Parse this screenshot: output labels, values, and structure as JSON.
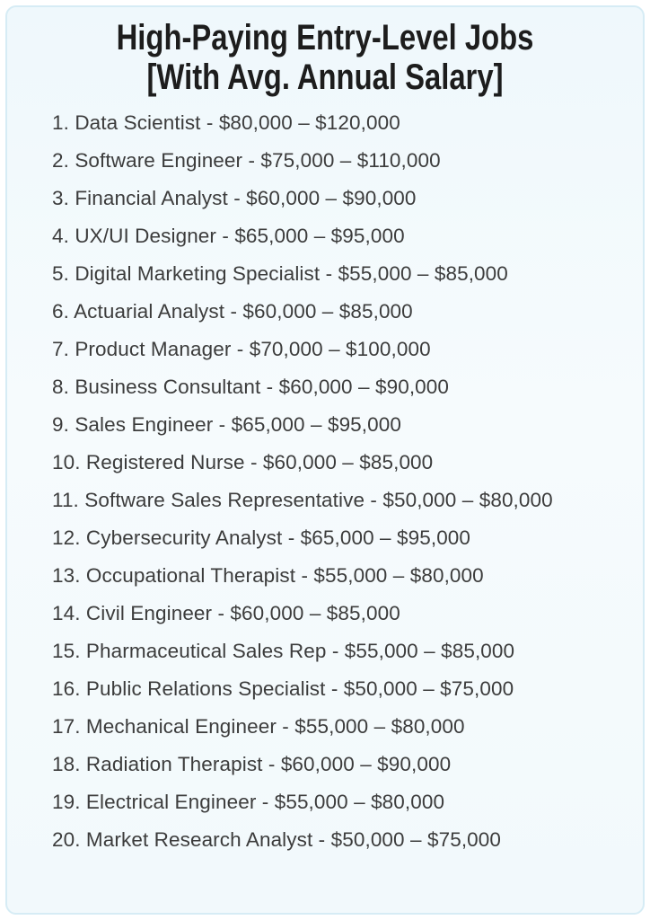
{
  "page": {
    "background_color": "#ffffff",
    "panel_background": "#f4fafd",
    "panel_border_color": "#d6ecf5",
    "title_color": "#1d1d1d",
    "list_text_color": "#3c3c3c"
  },
  "title": {
    "line1": "High-Paying Entry-Level Jobs",
    "line2": "[With Avg. Annual Salary]"
  },
  "jobs": [
    {
      "rank": 1,
      "job_title": "Data Scientist",
      "salary_min": "$80,000",
      "salary_max": "$120,000",
      "display": "1. Data Scientist - $80,000 – $120,000"
    },
    {
      "rank": 2,
      "job_title": "Software Engineer",
      "salary_min": "$75,000",
      "salary_max": "$110,000",
      "display": "2. Software Engineer - $75,000 – $110,000"
    },
    {
      "rank": 3,
      "job_title": "Financial Analyst",
      "salary_min": "$60,000",
      "salary_max": "$90,000",
      "display": "3. Financial Analyst - $60,000 – $90,000"
    },
    {
      "rank": 4,
      "job_title": "UX/UI Designer",
      "salary_min": "$65,000",
      "salary_max": "$95,000",
      "display": "4. UX/UI Designer - $65,000 – $95,000"
    },
    {
      "rank": 5,
      "job_title": "Digital Marketing Specialist",
      "salary_min": "$55,000",
      "salary_max": "$85,000",
      "display": "5. Digital Marketing Specialist - $55,000 – $85,000"
    },
    {
      "rank": 6,
      "job_title": "Actuarial Analyst",
      "salary_min": "$60,000",
      "salary_max": "$85,000",
      "display": "6. Actuarial Analyst - $60,000 – $85,000"
    },
    {
      "rank": 7,
      "job_title": "Product Manager",
      "salary_min": "$70,000",
      "salary_max": "$100,000",
      "display": "7. Product Manager - $70,000 – $100,000"
    },
    {
      "rank": 8,
      "job_title": "Business Consultant",
      "salary_min": "$60,000",
      "salary_max": "$90,000",
      "display": "8. Business Consultant - $60,000 – $90,000"
    },
    {
      "rank": 9,
      "job_title": "Sales Engineer",
      "salary_min": "$65,000",
      "salary_max": "$95,000",
      "display": "9. Sales Engineer - $65,000 – $95,000"
    },
    {
      "rank": 10,
      "job_title": "Registered Nurse",
      "salary_min": "$60,000",
      "salary_max": "$85,000",
      "display": "10. Registered Nurse - $60,000 – $85,000"
    },
    {
      "rank": 11,
      "job_title": "Software Sales Representative",
      "salary_min": "$50,000",
      "salary_max": "$80,000",
      "display": "11. Software Sales Representative - $50,000 – $80,000"
    },
    {
      "rank": 12,
      "job_title": "Cybersecurity Analyst",
      "salary_min": "$65,000",
      "salary_max": "$95,000",
      "display": "12. Cybersecurity Analyst - $65,000 – $95,000"
    },
    {
      "rank": 13,
      "job_title": "Occupational Therapist",
      "salary_min": "$55,000",
      "salary_max": "$80,000",
      "display": "13. Occupational Therapist - $55,000 – $80,000"
    },
    {
      "rank": 14,
      "job_title": "Civil Engineer",
      "salary_min": "$60,000",
      "salary_max": "$85,000",
      "display": "14. Civil Engineer - $60,000 – $85,000"
    },
    {
      "rank": 15,
      "job_title": "Pharmaceutical Sales Rep",
      "salary_min": "$55,000",
      "salary_max": "$85,000",
      "display": "15. Pharmaceutical Sales Rep - $55,000 – $85,000"
    },
    {
      "rank": 16,
      "job_title": "Public Relations Specialist",
      "salary_min": "$50,000",
      "salary_max": "$75,000",
      "display": "16. Public Relations Specialist - $50,000 – $75,000"
    },
    {
      "rank": 17,
      "job_title": "Mechanical Engineer",
      "salary_min": "$55,000",
      "salary_max": "$80,000",
      "display": "17. Mechanical Engineer - $55,000 – $80,000"
    },
    {
      "rank": 18,
      "job_title": "Radiation Therapist",
      "salary_min": "$60,000",
      "salary_max": "$90,000",
      "display": "18. Radiation Therapist - $60,000 – $90,000"
    },
    {
      "rank": 19,
      "job_title": "Electrical Engineer",
      "salary_min": "$55,000",
      "salary_max": "$80,000",
      "display": "19. Electrical Engineer - $55,000 – $80,000"
    },
    {
      "rank": 20,
      "job_title": "Market Research Analyst",
      "salary_min": "$50,000",
      "salary_max": "$75,000",
      "display": "20. Market Research Analyst - $50,000 – $75,000"
    }
  ]
}
